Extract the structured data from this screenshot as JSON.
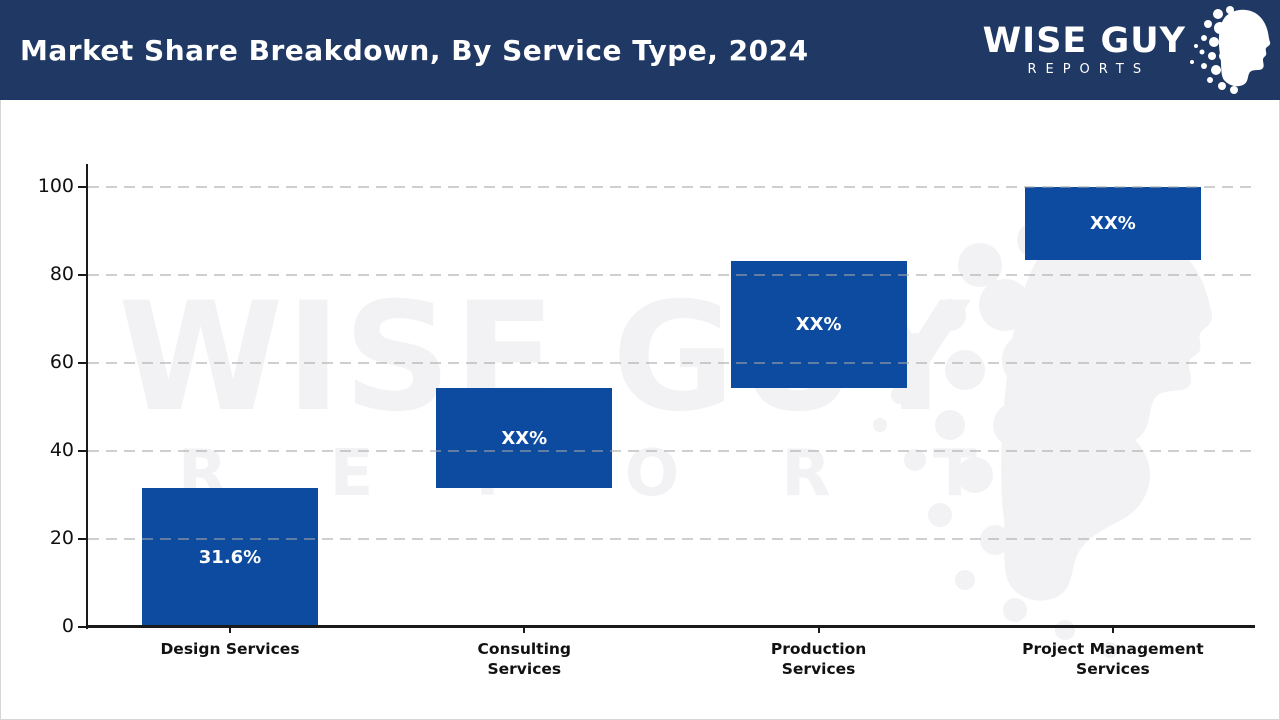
{
  "header": {
    "title": "Market Share Breakdown, By Service Type, 2024",
    "logo_line1": "WISE GUY",
    "logo_line2": "REPORTS"
  },
  "watermark": {
    "line1": "WISE GUY",
    "line2": "REPORTS"
  },
  "colors": {
    "header_bg": "#1f3864",
    "bar": "#0c4b9f",
    "bar_label": "#ffffff",
    "axis": "#1a1a1a",
    "grid": "#d9d9d9",
    "watermark": "#f2f2f4"
  },
  "chart_data": {
    "type": "bar",
    "subtype": "waterfall",
    "title": "Market Share Breakdown, By Service Type, 2024",
    "xlabel": "",
    "ylabel": "",
    "ylim": [
      0,
      105
    ],
    "yticks": [
      0,
      20,
      40,
      60,
      80,
      100
    ],
    "grid": "horizontal-dashed",
    "legend": "none",
    "segments": [
      {
        "category_lines": [
          "Design Services"
        ],
        "start": 0,
        "end": 31.6,
        "label": "31.6%"
      },
      {
        "category_lines": [
          "Consulting",
          "Services"
        ],
        "start": 31.6,
        "end": 54.2,
        "label": "XX%"
      },
      {
        "category_lines": [
          "Production",
          "Services"
        ],
        "start": 54.3,
        "end": 83.2,
        "label": "XX%"
      },
      {
        "category_lines": [
          "Project Management",
          "Services"
        ],
        "start": 83.3,
        "end": 100,
        "label": "XX%"
      }
    ]
  }
}
